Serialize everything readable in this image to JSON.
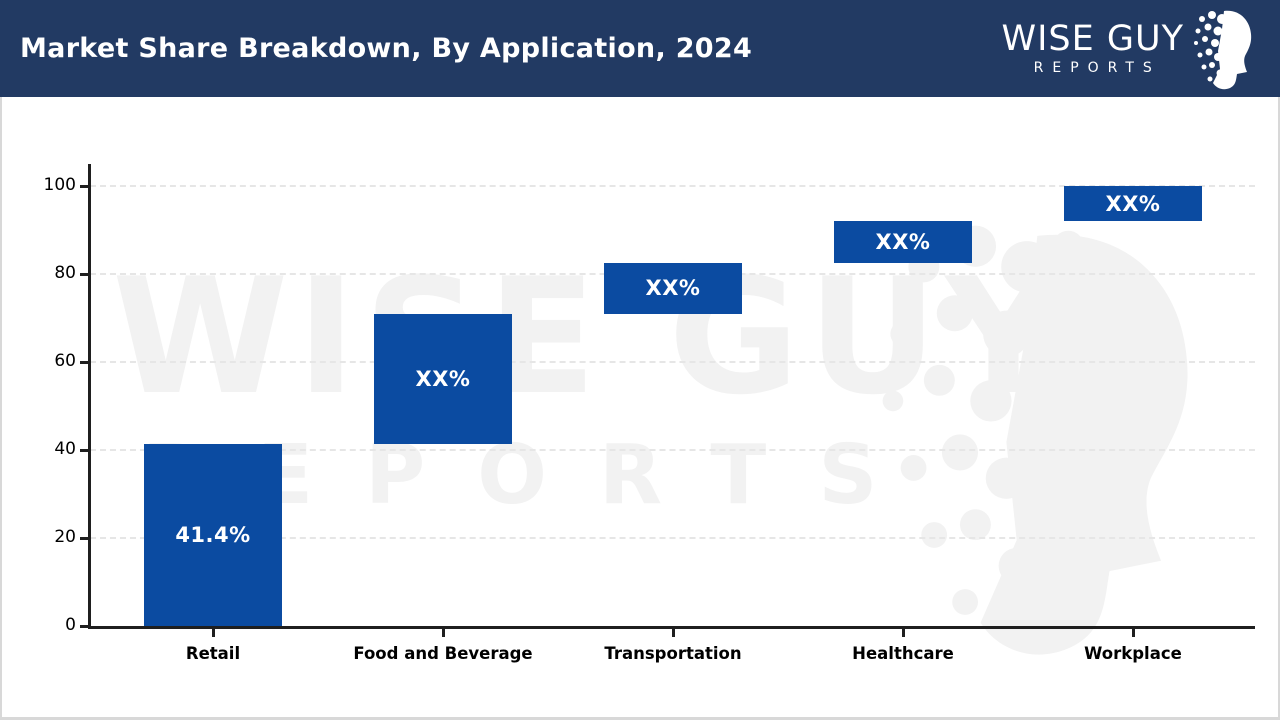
{
  "header": {
    "title": "Market Share Breakdown, By Application, 2024",
    "logo": {
      "line1": "WISE GUY",
      "line2": "REPORTS"
    }
  },
  "watermark": {
    "line1": "WISE GUY",
    "line2": "REPORTS"
  },
  "chart_data": {
    "type": "bar",
    "subtype": "waterfall-floating-bars",
    "title": "Market Share Breakdown, By Application, 2024",
    "categories": [
      "Retail",
      "Food and Beverage",
      "Transportation",
      "Healthcare",
      "Workplace"
    ],
    "segments": [
      {
        "category": "Retail",
        "start": 0,
        "end": 41.4,
        "label": "41.4%"
      },
      {
        "category": "Food and Beverage",
        "start": 41.4,
        "end": 71,
        "label": "XX%"
      },
      {
        "category": "Transportation",
        "start": 71,
        "end": 82.5,
        "label": "XX%"
      },
      {
        "category": "Healthcare",
        "start": 82.5,
        "end": 92,
        "label": "XX%"
      },
      {
        "category": "Workplace",
        "start": 92,
        "end": 100,
        "label": "XX%"
      }
    ],
    "yticks": [
      0,
      20,
      40,
      60,
      80,
      100
    ],
    "ylim": [
      0,
      105
    ],
    "xlabel": "",
    "ylabel": "",
    "grid": "horizontal-dashed",
    "legend": "none",
    "bar_color": "#0b4ba1",
    "bar_label_color": "#ffffff",
    "header_color": "#223a63",
    "gridline_color": "#e6e6e6"
  }
}
